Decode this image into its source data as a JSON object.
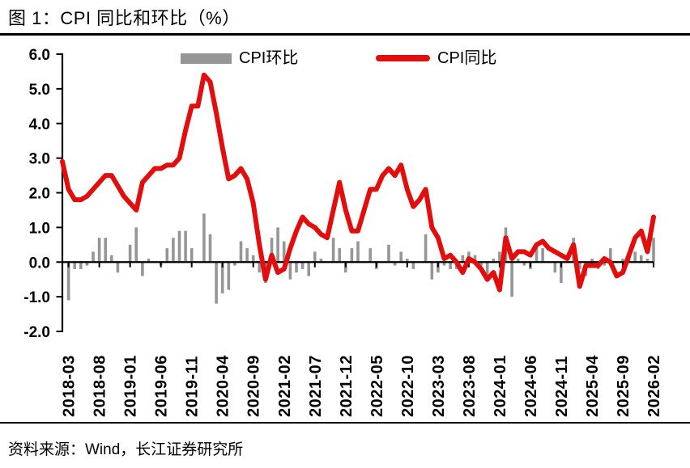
{
  "page": {
    "title": "图 1：CPI 同比和环比（%）",
    "source": "资料来源：Wind，长江证券研究所"
  },
  "legend": {
    "items": [
      {
        "label": "CPI环比",
        "swatch": "bar",
        "color": "#969696"
      },
      {
        "label": "CPI同比",
        "swatch": "line",
        "color": "#E20D0D"
      }
    ]
  },
  "colors": {
    "bar": "#969696",
    "line": "#E20D0D",
    "axis": "#000000",
    "background": "#ffffff"
  },
  "chart_data": {
    "type": "bar+line",
    "title": "图 1：CPI 同比和环比（%）",
    "xlabel": "",
    "ylabel": "",
    "ylim": [
      -2.0,
      6.0
    ],
    "ytick_step": 1.0,
    "grid": false,
    "legend_position": "top-inside",
    "x": [
      "2018-02",
      "2018-03",
      "2018-04",
      "2018-05",
      "2018-06",
      "2018-07",
      "2018-08",
      "2018-09",
      "2018-10",
      "2018-11",
      "2018-12",
      "2019-01",
      "2019-02",
      "2019-03",
      "2019-04",
      "2019-05",
      "2019-06",
      "2019-07",
      "2019-08",
      "2019-09",
      "2019-10",
      "2019-11",
      "2019-12",
      "2020-01",
      "2020-02",
      "2020-03",
      "2020-04",
      "2020-05",
      "2020-06",
      "2020-07",
      "2020-08",
      "2020-09",
      "2020-10",
      "2020-11",
      "2020-12",
      "2021-01",
      "2021-02",
      "2021-03",
      "2021-04",
      "2021-05",
      "2021-06",
      "2021-07",
      "2021-08",
      "2021-09",
      "2021-10",
      "2021-11",
      "2021-12",
      "2022-01",
      "2022-02",
      "2022-03",
      "2022-04",
      "2022-05",
      "2022-06",
      "2022-07",
      "2022-08",
      "2022-09",
      "2022-10",
      "2022-11",
      "2022-12",
      "2023-01",
      "2023-02",
      "2023-03",
      "2023-04",
      "2023-05",
      "2023-06",
      "2023-07",
      "2023-08",
      "2023-09",
      "2023-10",
      "2023-11",
      "2023-12",
      "2024-01",
      "2024-02",
      "2024-03",
      "2024-04",
      "2024-05",
      "2024-06",
      "2024-07",
      "2024-08",
      "2024-09",
      "2024-10",
      "2024-11",
      "2024-12",
      "2025-01",
      "2025-02",
      "2025-03",
      "2025-04",
      "2025-05",
      "2025-06",
      "2025-07",
      "2025-08",
      "2025-09",
      "2025-10",
      "2025-11",
      "2025-12",
      "2026-01",
      "2026-02"
    ],
    "xtick_labels": [
      "2018-03",
      "2018-08",
      "2019-01",
      "2019-06",
      "2019-11",
      "2020-04",
      "2020-09",
      "2021-02",
      "2021-07",
      "2021-12",
      "2022-05",
      "2022-10",
      "2023-03",
      "2023-08",
      "2024-01",
      "2024-06",
      "2024-11",
      "2025-04",
      "2025-09",
      "2026-02"
    ],
    "series": [
      {
        "name": "CPI环比",
        "type": "bar",
        "color": "#969696",
        "values": [
          null,
          -1.1,
          -0.2,
          -0.2,
          -0.1,
          0.3,
          0.7,
          0.7,
          0.2,
          -0.3,
          0.0,
          0.5,
          1.0,
          -0.4,
          0.1,
          0.0,
          -0.1,
          0.4,
          0.7,
          0.9,
          0.9,
          0.4,
          0.0,
          1.4,
          0.8,
          -1.2,
          -0.9,
          -0.8,
          -0.1,
          0.6,
          0.4,
          0.2,
          -0.3,
          -0.6,
          0.7,
          1.0,
          0.6,
          -0.5,
          -0.3,
          -0.2,
          -0.4,
          0.3,
          0.1,
          0.0,
          0.7,
          0.4,
          -0.3,
          0.4,
          0.6,
          0.0,
          0.4,
          -0.2,
          0.0,
          0.5,
          -0.1,
          0.3,
          0.1,
          -0.2,
          0.0,
          0.8,
          -0.5,
          -0.3,
          -0.1,
          -0.2,
          -0.2,
          0.2,
          0.3,
          0.2,
          -0.1,
          -0.5,
          0.1,
          0.3,
          1.0,
          -1.0,
          0.1,
          -0.1,
          -0.2,
          0.5,
          0.4,
          0.0,
          -0.3,
          -0.6,
          0.0,
          0.7,
          -0.2,
          -0.4,
          0.1,
          -0.2,
          -0.1,
          0.4,
          0.0,
          0.1,
          0.2,
          0.3,
          0.2,
          0.1,
          0.7
        ]
      },
      {
        "name": "CPI同比",
        "type": "line",
        "color": "#E20D0D",
        "values": [
          2.9,
          2.1,
          1.8,
          1.8,
          1.9,
          2.1,
          2.3,
          2.5,
          2.5,
          2.2,
          1.9,
          1.7,
          1.5,
          2.3,
          2.5,
          2.7,
          2.7,
          2.8,
          2.8,
          3.0,
          3.8,
          4.5,
          4.5,
          5.4,
          5.2,
          4.3,
          3.3,
          2.4,
          2.5,
          2.7,
          2.4,
          1.7,
          0.5,
          -0.5,
          0.2,
          -0.3,
          -0.2,
          0.4,
          0.9,
          1.3,
          1.1,
          1.0,
          0.8,
          0.7,
          1.5,
          2.3,
          1.5,
          0.9,
          0.9,
          1.5,
          2.1,
          2.1,
          2.5,
          2.7,
          2.5,
          2.8,
          2.1,
          1.6,
          1.8,
          2.1,
          1.0,
          0.7,
          0.1,
          0.2,
          0.0,
          -0.3,
          0.1,
          0.0,
          -0.2,
          -0.5,
          -0.3,
          -0.8,
          0.7,
          0.1,
          0.3,
          0.3,
          0.2,
          0.5,
          0.6,
          0.4,
          0.3,
          0.2,
          0.1,
          0.5,
          -0.7,
          -0.1,
          -0.1,
          -0.1,
          0.1,
          0.0,
          -0.4,
          -0.3,
          0.2,
          0.7,
          0.9,
          0.3,
          1.3
        ]
      }
    ]
  }
}
